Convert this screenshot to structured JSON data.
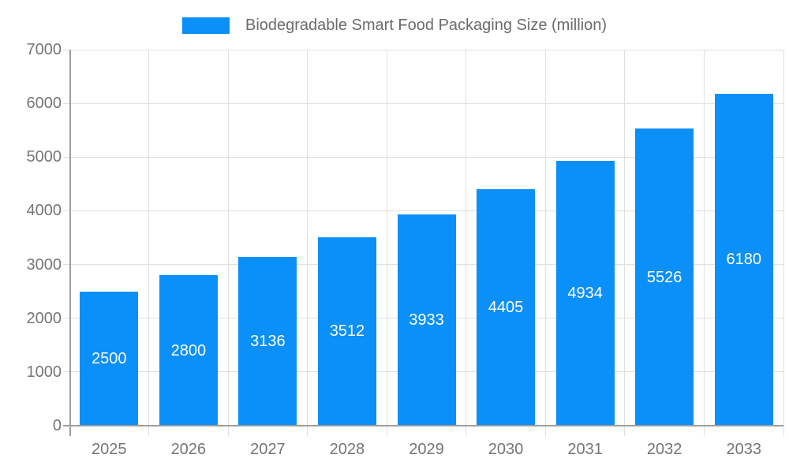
{
  "legend": {
    "label": "Biodegradable Smart Food Packaging Size (million)"
  },
  "chart_data": {
    "type": "bar",
    "title": "Biodegradable Smart Food Packaging Size (million)",
    "series_name": "Biodegradable Smart Food Packaging Size (million)",
    "categories": [
      "2025",
      "2026",
      "2027",
      "2028",
      "2029",
      "2030",
      "2031",
      "2032",
      "2033"
    ],
    "values": [
      2500,
      2800,
      3136,
      3512,
      3933,
      4405,
      4934,
      5526,
      6180
    ],
    "bar_value_labels": [
      "2500",
      "2800",
      "3136",
      "3512",
      "3933",
      "4405",
      "4934",
      "5526",
      "6180"
    ],
    "xlabel": "",
    "ylabel": "",
    "ylim": [
      0,
      7000
    ],
    "y_ticks": [
      0,
      1000,
      2000,
      3000,
      4000,
      5000,
      6000,
      7000
    ],
    "y_tick_labels": [
      "0",
      "1000",
      "2000",
      "3000",
      "4000",
      "5000",
      "6000",
      "7000"
    ],
    "grid": true,
    "legend_position": "top-center",
    "value_labels_position": "inside-center"
  },
  "colors": {
    "bar": "#0b8ff9",
    "bar_label": "#ffffff",
    "axis_line": "#9e9e9e",
    "gridline": "#e0e0e0",
    "axis_text": "#757575",
    "legend_text": "#6b6b6b",
    "background": "#ffffff"
  }
}
